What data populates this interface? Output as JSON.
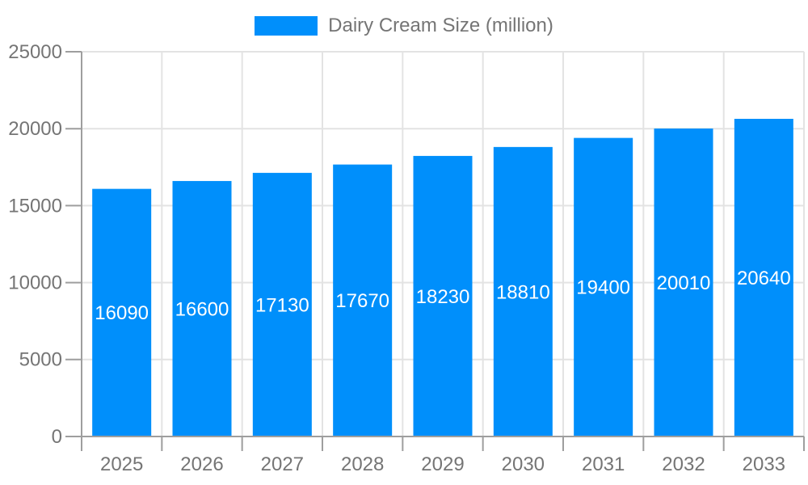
{
  "chart_data": {
    "type": "bar",
    "title": "Dairy Cream Size (million)",
    "legend": {
      "label": "Dairy Cream Size (million)",
      "position": "top"
    },
    "categories": [
      "2025",
      "2026",
      "2027",
      "2028",
      "2029",
      "2030",
      "2031",
      "2032",
      "2033"
    ],
    "series": [
      {
        "name": "Dairy Cream Size (million)",
        "values": [
          16090,
          16600,
          17130,
          17670,
          18230,
          18810,
          19400,
          20010,
          20640
        ]
      }
    ],
    "xlabel": "",
    "ylabel": "",
    "ylim": [
      0,
      25000
    ],
    "yticks": [
      0,
      5000,
      10000,
      15000,
      20000,
      25000
    ],
    "grid": true,
    "data_labels": "inside-center",
    "colors": {
      "bar": "#008FFB",
      "bar_label_text": "#ffffff",
      "axis_text": "#757575",
      "axis_line": "#9e9e9e",
      "grid_line": "#e3e3e3",
      "background": "#ffffff"
    }
  }
}
